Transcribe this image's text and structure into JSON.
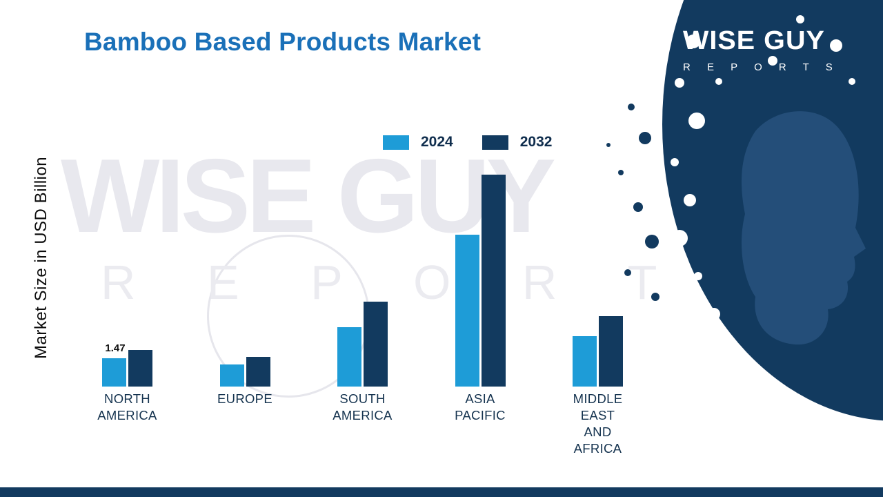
{
  "page": {
    "title": "Bamboo Based Products Market",
    "watermark": {
      "line1": "WISE GUY",
      "line2": "R E P O R T S"
    },
    "logo": {
      "line1": "WISE GUY",
      "line2": "R E P O R T S"
    }
  },
  "chart_data": {
    "type": "bar",
    "title": "Bamboo Based Products Market",
    "ylabel": "Market Size in USD Billion",
    "categories": [
      "NORTH AMERICA",
      "EUROPE",
      "SOUTH AMERICA",
      "ASIA PACIFIC",
      "MIDDLE EAST AND AFRICA"
    ],
    "category_lines": [
      [
        "NORTH",
        "AMERICA"
      ],
      [
        "EUROPE"
      ],
      [
        "SOUTH",
        "AMERICA"
      ],
      [
        "ASIA",
        "PACIFIC"
      ],
      [
        "MIDDLE",
        "EAST",
        "AND",
        "AFRICA"
      ]
    ],
    "series": [
      {
        "name": "2024",
        "color": "#1e9cd7",
        "values": [
          1.47,
          1.15,
          3.1,
          7.9,
          2.6
        ]
      },
      {
        "name": "2032",
        "color": "#123a5f",
        "values": [
          1.9,
          1.55,
          4.4,
          11.0,
          3.65
        ]
      }
    ],
    "data_labels": [
      {
        "series": "2024",
        "category": "NORTH AMERICA",
        "text": "1.47"
      }
    ],
    "ylim": [
      0,
      12
    ],
    "grid": false,
    "legend_position": "top"
  },
  "colors": {
    "title": "#1a70b8",
    "bar_2024": "#1e9cd7",
    "bar_2032": "#123a5f",
    "footer_strip": "#123a5f",
    "category_text": "#15334f",
    "watermark": "#e9e9ee",
    "decor_blob": "#123a5f"
  }
}
